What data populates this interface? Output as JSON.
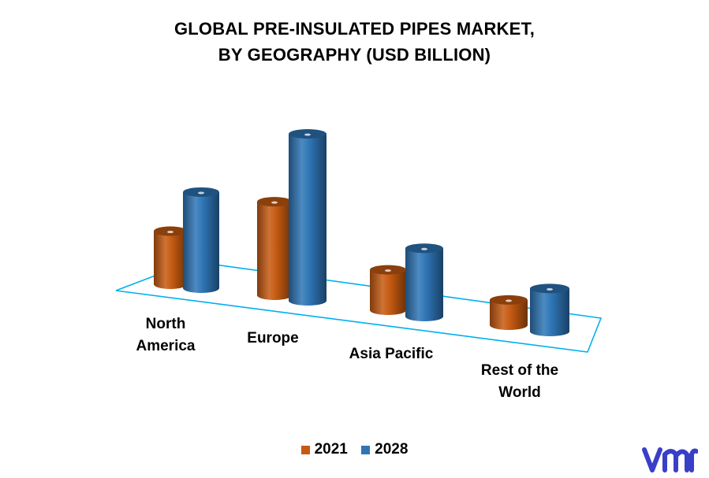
{
  "chart_data": {
    "type": "bar",
    "title": [
      "GLOBAL PRE-INSULATED PIPES MARKET,",
      "BY GEOGRAPHY (USD BILLION)"
    ],
    "categories": [
      "North America",
      "Europe",
      "Asia Pacific",
      "Rest of the World"
    ],
    "category_labels": [
      [
        "North",
        "America"
      ],
      [
        "Europe"
      ],
      [
        "Asia Pacific"
      ],
      [
        "Rest of the",
        "World"
      ]
    ],
    "series": [
      {
        "name": "2021",
        "values": [
          2.1,
          3.7,
          1.6,
          1.0
        ],
        "color": "#c55a11"
      },
      {
        "name": "2028",
        "values": [
          3.8,
          6.6,
          2.7,
          1.7
        ],
        "color": "#2e75b6"
      }
    ],
    "style": "3d-cylinder",
    "grid": false,
    "legend_position": "bottom"
  },
  "logo": {
    "text": "vmr",
    "color": "#3a3fc8"
  },
  "colors": {
    "floor_outline": "#00b0f0"
  }
}
